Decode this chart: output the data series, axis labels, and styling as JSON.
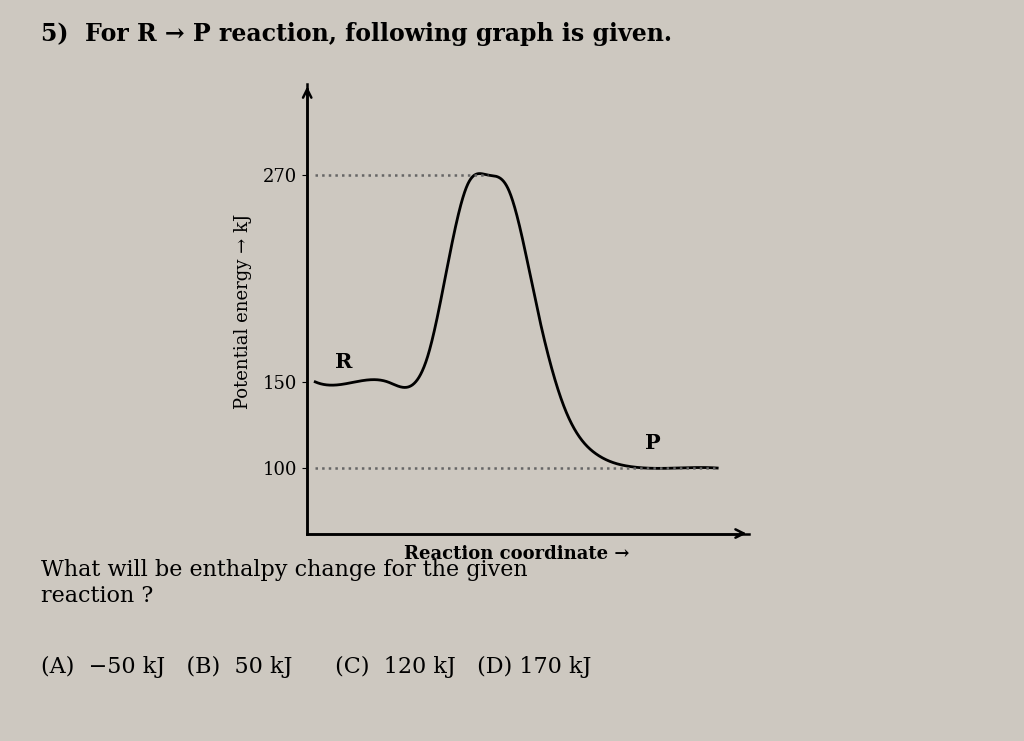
{
  "title_text": "5)  For R → P reaction, following graph is given.",
  "ylabel": "Potential energy → kJ",
  "xlabel": "Reaction coordinate →",
  "R_energy": 150,
  "P_energy": 100,
  "peak_energy": 270,
  "yticks": [
    100,
    150,
    270
  ],
  "background_color": "#cdc8c0",
  "curve_color": "#000000",
  "dashed_color": "#666666",
  "label_R": "R",
  "label_P": "P",
  "answer_text": "What will be enthalpy change for the given\nreaction ?",
  "options_text": "(A)  −50 kJ   (B)  50 kJ      (C)  120 kJ   (D) 170 kJ",
  "title_fontsize": 17,
  "axis_label_fontsize": 13,
  "tick_fontsize": 13,
  "answer_fontsize": 16,
  "options_fontsize": 16
}
